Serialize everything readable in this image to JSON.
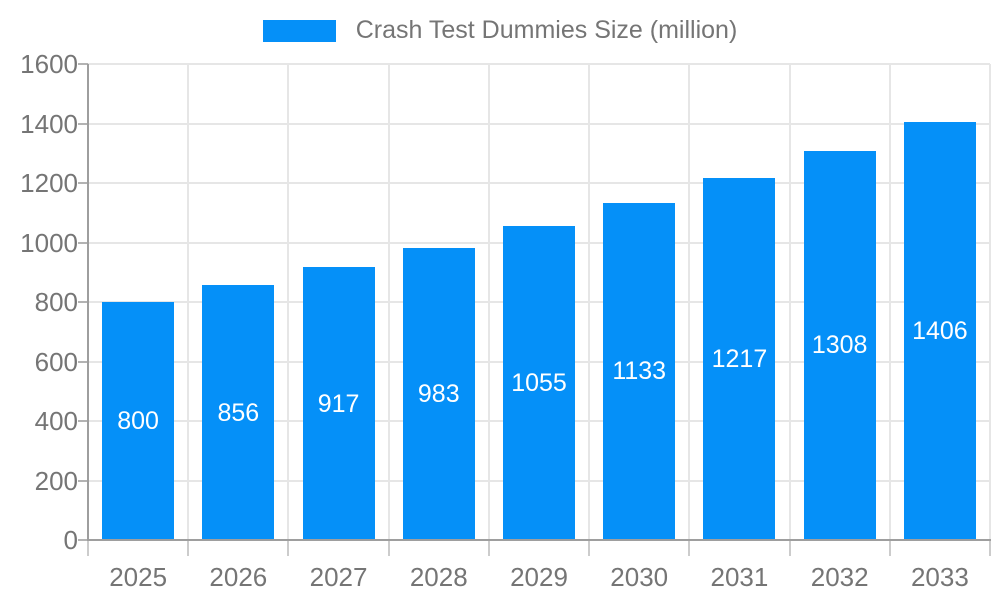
{
  "legend": {
    "label": "Crash Test Dummies Size (million)"
  },
  "chart_data": {
    "type": "bar",
    "title": "",
    "series_name": "Crash Test Dummies Size (million)",
    "categories": [
      "2025",
      "2026",
      "2027",
      "2028",
      "2029",
      "2030",
      "2031",
      "2032",
      "2033"
    ],
    "values": [
      800,
      856,
      917,
      983,
      1055,
      1133,
      1217,
      1308,
      1406
    ],
    "value_labels": [
      "800",
      "856",
      "917",
      "983",
      "1055",
      "1133",
      "1217",
      "1308",
      "1406"
    ],
    "xlabel": "",
    "ylabel": "",
    "ylim": [
      0,
      1600
    ],
    "ytick_step": 200,
    "ytick_labels": [
      "0",
      "200",
      "400",
      "600",
      "800",
      "1000",
      "1200",
      "1400",
      "1600"
    ],
    "grid": true,
    "legend_position": "top",
    "colors": {
      "bar": "#0590f8",
      "value_label": "#ffffff",
      "axis_text": "#757575",
      "gridline": "#e6e6e6",
      "axis_line": "#9e9e9e",
      "background": "#ffffff"
    }
  }
}
